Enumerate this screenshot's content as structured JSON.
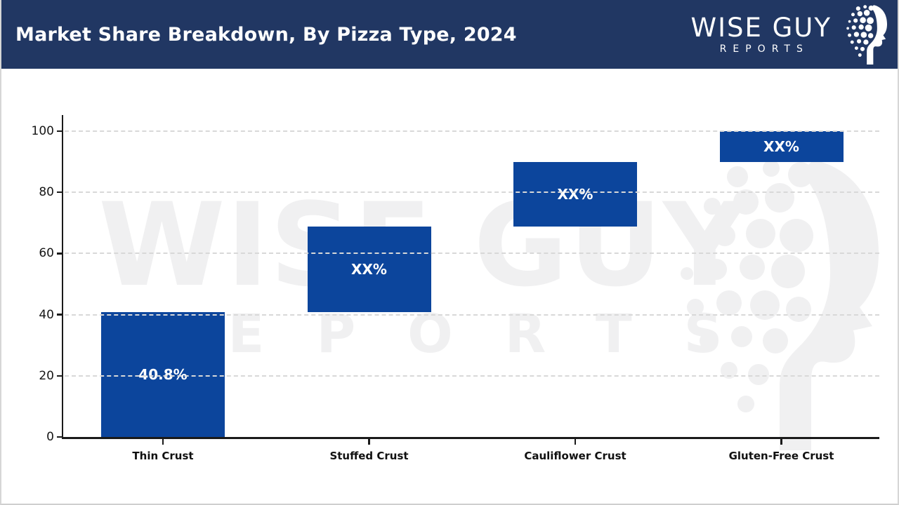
{
  "header": {
    "title": "Market Share Breakdown, By Pizza Type, 2024",
    "logo": {
      "line1": "WISE GUY",
      "line2": "REPORTS"
    }
  },
  "watermark": {
    "line1": "WISE GUY",
    "line2": "REPORTS"
  },
  "colors": {
    "header_bg": "#213763",
    "bar_blue": "#0c459c",
    "bar_label": "#ffffff",
    "gridline": "#d8d8d8",
    "axis": "#1a1a1a",
    "watermark": "#f0f0f1"
  },
  "chart_data": {
    "type": "bar",
    "subtype": "waterfall",
    "title": "Market Share Breakdown, By Pizza Type, 2024",
    "categories": [
      "Thin Crust",
      "Stuffed Crust",
      "Cauliflower Crust",
      "Gluten-Free Crust"
    ],
    "segments": [
      {
        "category": "Thin Crust",
        "start": 0,
        "end": 40.8,
        "label": "40.8%"
      },
      {
        "category": "Stuffed Crust",
        "start": 40.8,
        "end": 68.8,
        "label": "XX%"
      },
      {
        "category": "Cauliflower Crust",
        "start": 68.8,
        "end": 89.8,
        "label": "XX%"
      },
      {
        "category": "Gluten-Free Crust",
        "start": 89.8,
        "end": 100,
        "label": "XX%"
      }
    ],
    "yticks": [
      0,
      20,
      40,
      60,
      80,
      100
    ],
    "ylim": [
      0,
      105
    ],
    "xlabel": "",
    "ylabel": "",
    "grid": "horizontal-dashed",
    "legend": "none",
    "bar_color": "#0c459c",
    "value_label_color": "#ffffff"
  }
}
